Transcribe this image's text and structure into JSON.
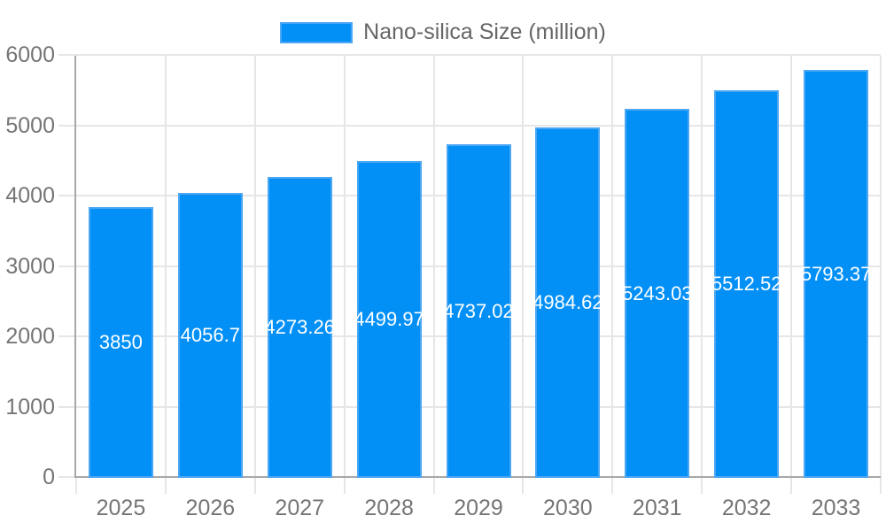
{
  "legend": {
    "label": "Nano-silica Size (million)"
  },
  "colors": {
    "background": "#ffffff",
    "bar_fill": "#0290f7",
    "bar_border": "#4ba6f3",
    "grid_line": "#e6e6e6",
    "axis_line": "#a8a8a8",
    "axis_text": "#757575",
    "legend_text": "#666666",
    "bar_label_text": "#ffffff"
  },
  "chart_data": {
    "type": "bar",
    "title": "Nano-silica Size (million)",
    "legend_position": "top",
    "grid": true,
    "categories": [
      "2025",
      "2026",
      "2027",
      "2028",
      "2029",
      "2030",
      "2031",
      "2032",
      "2033"
    ],
    "series": [
      {
        "name": "Nano-silica Size (million)",
        "values": [
          3850,
          4056.7,
          4273.26,
          4499.97,
          4737.02,
          4984.62,
          5243.03,
          5512.52,
          5793.37
        ],
        "value_labels": [
          "3850",
          "4056.7",
          "4273.26",
          "4499.97",
          "4737.02",
          "4984.62",
          "5243.03",
          "5512.52",
          "5793.37"
        ]
      }
    ],
    "xlabel": "",
    "ylabel": "",
    "ylim": [
      0,
      6000
    ],
    "y_ticks": [
      0,
      1000,
      2000,
      3000,
      4000,
      5000,
      6000
    ]
  }
}
